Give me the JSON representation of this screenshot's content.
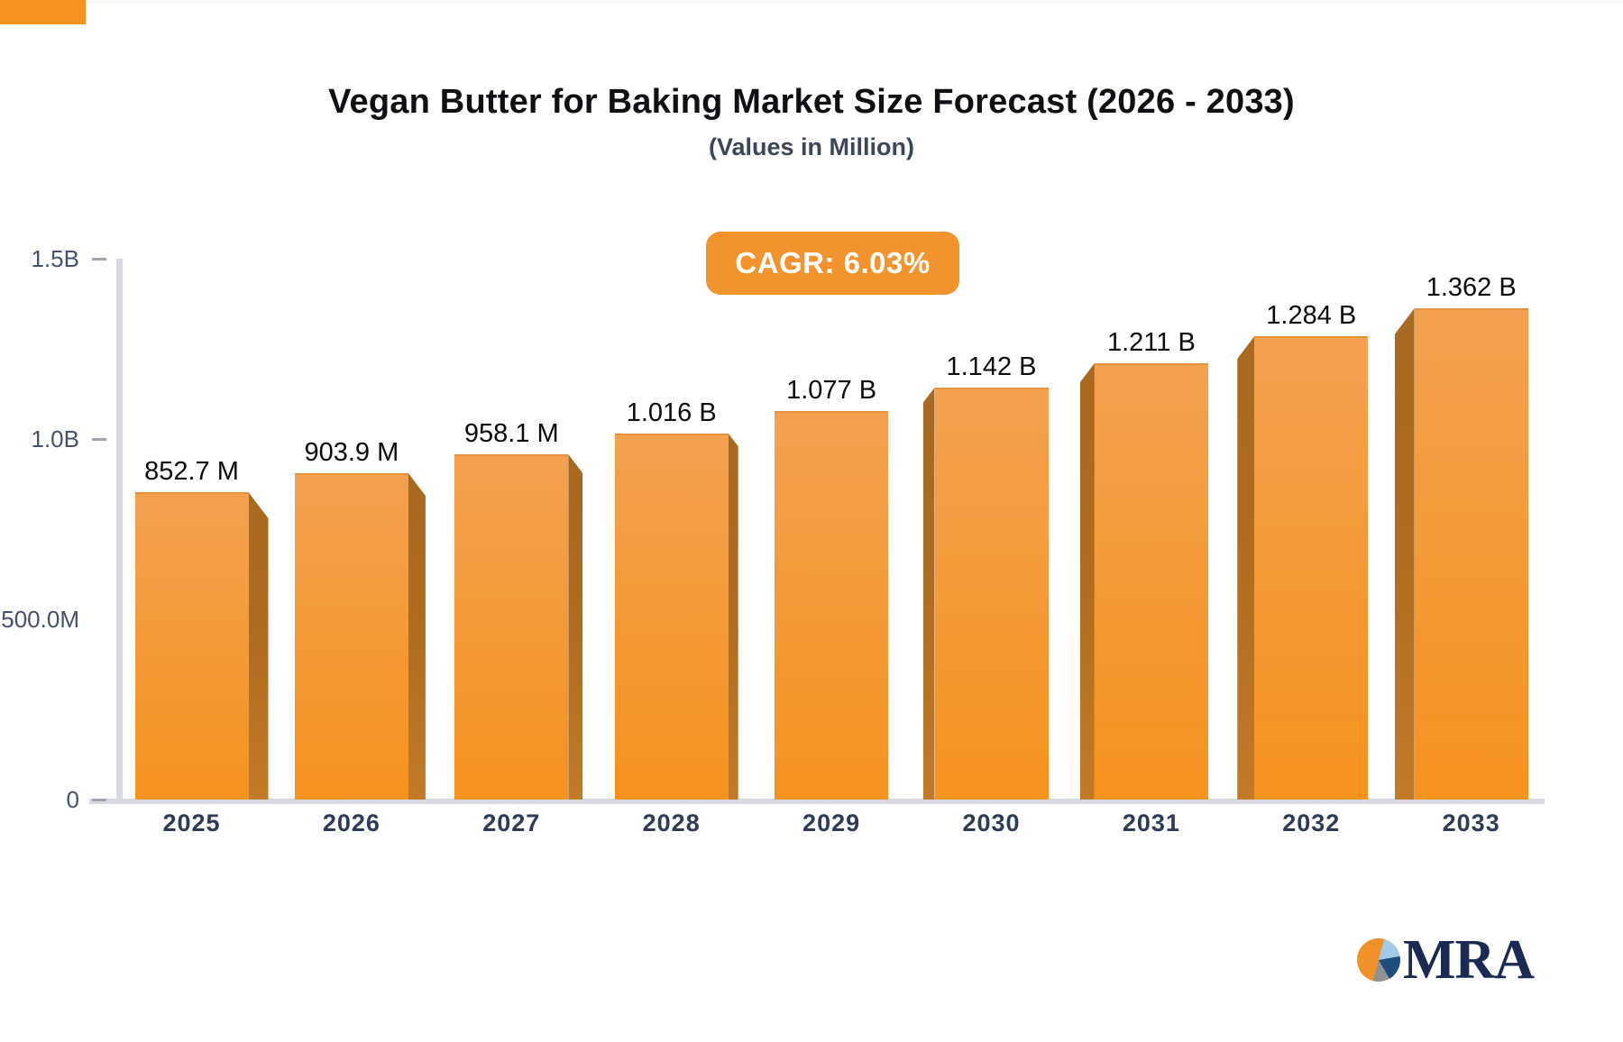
{
  "page": {
    "title": "Vegan Butter for Baking Market Size Forecast (2026 - 2033)",
    "subtitle": "(Values in Million)",
    "cagr_badge": "CAGR: 6.03%"
  },
  "logo": {
    "text": "MRA",
    "text_color": "#1b2a52",
    "pie_colors": {
      "orange": "#f0912a",
      "light_blue": "#a3cae9",
      "navy": "#1e4d7b",
      "gray": "#909196"
    }
  },
  "chart_data": {
    "type": "bar",
    "title": "Vegan Butter for Baking Market Size Forecast (2026 - 2033)",
    "subtitle": "(Values in Million)",
    "annotation": "CAGR: 6.03%",
    "categories": [
      "2025",
      "2026",
      "2027",
      "2028",
      "2029",
      "2030",
      "2031",
      "2032",
      "2033"
    ],
    "values_millions": [
      852.7,
      903.9,
      958.1,
      1016,
      1077,
      1142,
      1211,
      1284,
      1362
    ],
    "bar_labels": [
      "852.7 M",
      "903.9 M",
      "958.1 M",
      "1.016 B",
      "1.077 B",
      "1.142 B",
      "1.211 B",
      "1.284 B",
      "1.362 B"
    ],
    "xlabel": "",
    "ylabel": "",
    "ylim_millions": [
      0,
      1500
    ],
    "grid": false,
    "legend": null,
    "y_axis": {
      "ticks": [
        {
          "label": "1.5B",
          "value_millions": 1500,
          "has_dash": true
        },
        {
          "label": "1.0B",
          "value_millions": 1000,
          "has_dash": true
        },
        {
          "label": "500.0M",
          "value_millions": 500,
          "has_dash": false
        },
        {
          "label": "0",
          "value_millions": 0,
          "has_dash": true
        }
      ]
    },
    "colors": {
      "bar": "#f6921e",
      "bar_top": "#f3a150",
      "bar_side": "#b06c20",
      "bar_side_dark": "#a96820",
      "bar_side_light": "#c27a28",
      "badge": "#f2932d",
      "corner_accent": "#f6921e",
      "axis_line": "#d7dae0",
      "tick": "#9ca3af"
    }
  }
}
